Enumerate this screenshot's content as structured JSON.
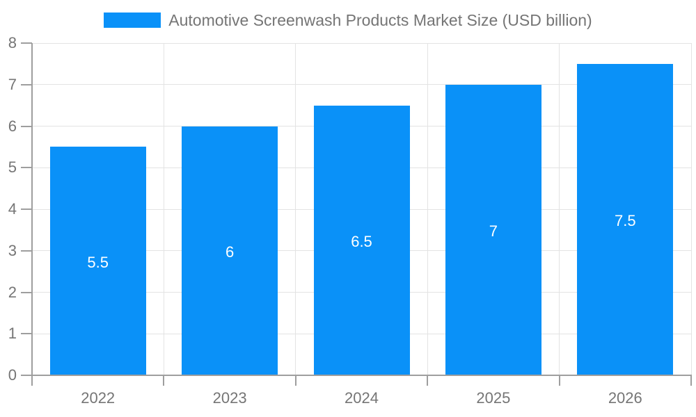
{
  "legend": {
    "label": "Automotive Screenwash Products Market Size (USD billion)"
  },
  "chart_data": {
    "type": "bar",
    "title": "Automotive Screenwash Products Market Size (USD billion)",
    "categories": [
      "2022",
      "2023",
      "2024",
      "2025",
      "2026"
    ],
    "values": [
      5.5,
      6,
      6.5,
      7,
      7.5
    ],
    "data_labels": [
      "5.5",
      "6",
      "6.5",
      "7",
      "7.5"
    ],
    "xlabel": "",
    "ylabel": "",
    "ylim": [
      0,
      8
    ],
    "y_ticks": [
      0,
      1,
      2,
      3,
      4,
      5,
      6,
      7,
      8
    ],
    "legend_position": "top-center",
    "grid": true,
    "colors": {
      "bar": "#0A91F8",
      "grid": "#e3e3e3",
      "axis": "#9e9e9e",
      "tick_label": "#757575",
      "title": "#757575",
      "bar_label": "#ffffff",
      "background": "#ffffff"
    }
  }
}
